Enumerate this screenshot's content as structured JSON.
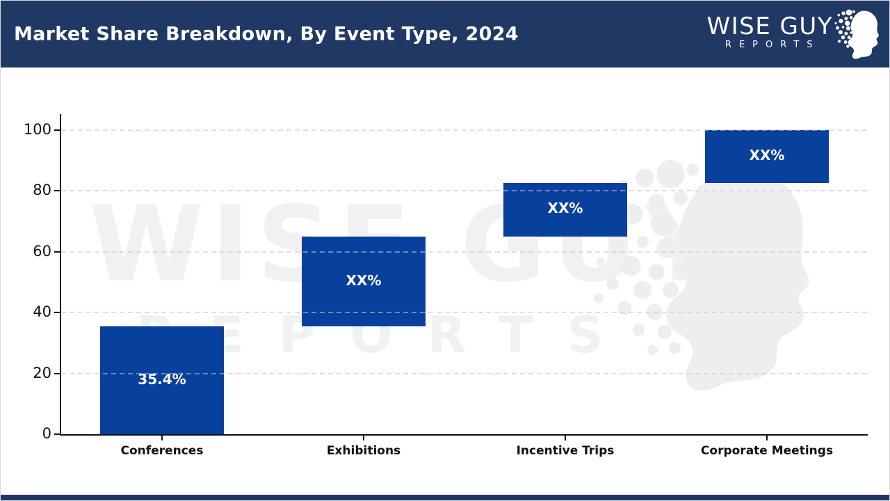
{
  "header": {
    "title": "Market Share Breakdown, By Event Type, 2024",
    "logo": {
      "name": "WISE GUY",
      "sub": "REPORTS"
    }
  },
  "watermark": {
    "line1": "WISE GUY",
    "line2": "REPORTS"
  },
  "colors": {
    "header_bg": "#203864",
    "bar": "#08419D",
    "grid": "#d9d9d9",
    "axis": "#111111",
    "watermark": "#f1f1f3",
    "bar_label": "#ffffff"
  },
  "chart_data": {
    "type": "bar",
    "subtype": "waterfall",
    "title": "Market Share Breakdown, By Event Type, 2024",
    "xlabel": "",
    "ylabel": "",
    "categories": [
      "Conferences",
      "Exhibitions",
      "Incentive Trips",
      "Corporate Meetings"
    ],
    "segments": [
      {
        "category": "Conferences",
        "start": 0,
        "end": 35.4,
        "label": "35.4%"
      },
      {
        "category": "Exhibitions",
        "start": 35.4,
        "end": 65.0,
        "label": "XX%"
      },
      {
        "category": "Incentive Trips",
        "start": 65.0,
        "end": 82.6,
        "label": "XX%"
      },
      {
        "category": "Corporate Meetings",
        "start": 82.6,
        "end": 100,
        "label": "XX%"
      }
    ],
    "ylim": [
      0,
      100
    ],
    "yticks": [
      0,
      20,
      40,
      60,
      80,
      100
    ],
    "grid": "horizontal dashed",
    "legend": "none"
  }
}
